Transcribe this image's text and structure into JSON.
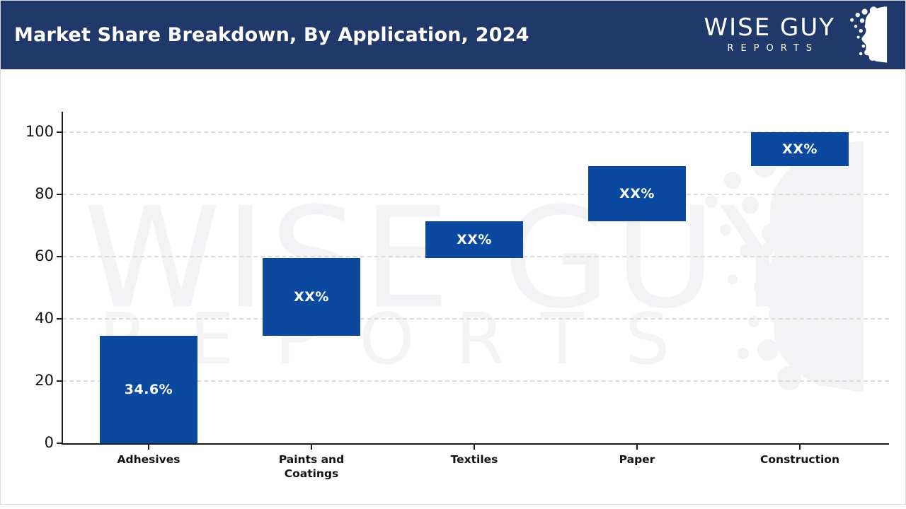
{
  "header": {
    "title": "Market Share Breakdown, By Application, 2024",
    "logo": {
      "line1": "WISE GUY",
      "line2": "REPORTS"
    }
  },
  "watermark": {
    "line1": "WISE GUY",
    "line2": "REPORTS"
  },
  "colors": {
    "header_bg": "#21386B",
    "bar": "#0B49A0",
    "grid": "#DBDBDB",
    "axis": "#1A1A1A",
    "bar_label": "#FFFFFF",
    "watermark": "#F3F3F5"
  },
  "chart_data": {
    "type": "bar",
    "subtype": "waterfall",
    "title": "Market Share Breakdown, By Application, 2024",
    "categories": [
      "Adhesives",
      "Paints and Coatings",
      "Textiles",
      "Paper",
      "Construction"
    ],
    "segments": [
      {
        "category": "Adhesives",
        "start": 0,
        "end": 34.6,
        "label": "34.6%"
      },
      {
        "category": "Paints and Coatings",
        "start": 34.6,
        "end": 59.5,
        "label": "XX%"
      },
      {
        "category": "Textiles",
        "start": 59.5,
        "end": 71.4,
        "label": "XX%"
      },
      {
        "category": "Paper",
        "start": 71.4,
        "end": 89.1,
        "label": "XX%"
      },
      {
        "category": "Construction",
        "start": 89.1,
        "end": 100,
        "label": "XX%"
      }
    ],
    "yticks": [
      0,
      20,
      40,
      60,
      80,
      100
    ],
    "ylim": [
      0,
      100
    ],
    "xlabel": "",
    "ylabel": "",
    "grid": "horizontal-dashed",
    "legend": "none"
  }
}
